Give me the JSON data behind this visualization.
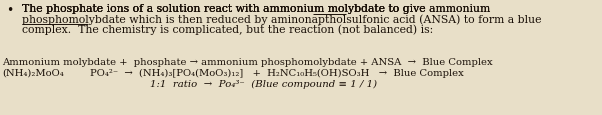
{
  "bg_color": "#e8dfc8",
  "text_color": "#1a1008",
  "bullet": "•",
  "line1": "The phosphate ions of a solution react with ammonium molybdate to give ammonium",
  "line1_underline_start": "ammonium",
  "line2": "phosphomolybdate which is then reduced by aminonaptholsulfonic acid (ANSA) to form a blue",
  "line2_underline_word": "phosphomolybdate",
  "line3": "complex.  The chemistry is complicated, but the reaction (not balanced) is:",
  "eq_row1": "Ammonium molybdate +  phosphate → ammonium phosphomolybdate + ANSA  →  Blue Complex",
  "eq_row2a": "(NH₄)₂MoO₄",
  "eq_row2b": "PO₄²⁻  →  (NH₄)₃[PO₄(MoO₃)₁₂]   +  H₂NC₁₀H₅(OH)SO₃H   →  Blue Complex",
  "eq_row3": "1:1  ratio  →  Po₄³⁻  (Blue compound ≡ 1 / 1)",
  "fs_para": 7.8,
  "fs_eq": 7.2,
  "fs_eq_small": 6.8
}
